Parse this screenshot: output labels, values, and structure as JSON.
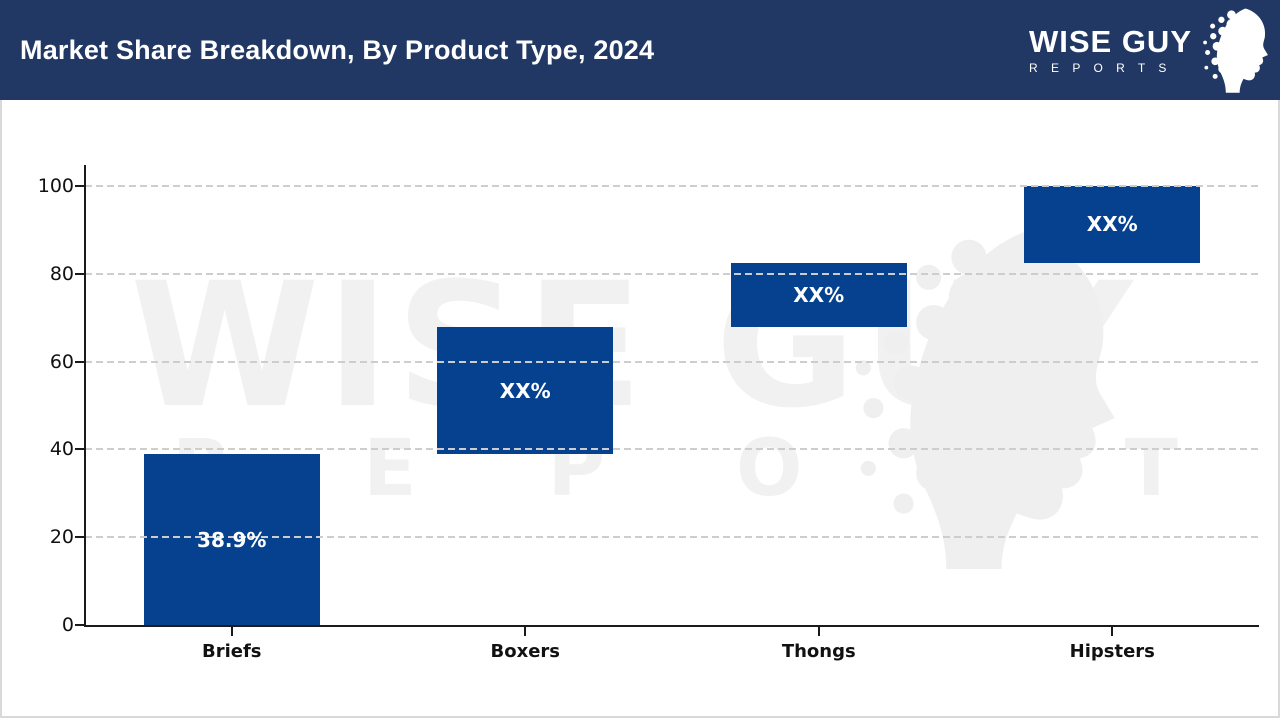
{
  "header": {
    "title": "Market Share Breakdown, By Product Type, 2024",
    "logo": {
      "line1": "WISE GUY",
      "line2": "R E P O R T S"
    }
  },
  "watermark": {
    "line1": "WISE GUY",
    "line2": "R E P O R T S"
  },
  "colors": {
    "header_bg": "#213864",
    "bar": "#05418f",
    "grid": "#cdcdcd",
    "axis": "#1a1a1a",
    "watermark_text": "#f1f1f1",
    "watermark_head": "#efefef",
    "card_border": "#d9d9d9",
    "bar_label": "#ffffff"
  },
  "chart_data": {
    "type": "bar",
    "subtype": "waterfall",
    "title": "Market Share Breakdown, By Product Type, 2024",
    "categories": [
      "Briefs",
      "Boxers",
      "Thongs",
      "Hipsters"
    ],
    "segments": [
      {
        "category": "Briefs",
        "start": 0,
        "end": 38.9,
        "label": "38.9%"
      },
      {
        "category": "Boxers",
        "start": 38.9,
        "end": 67.9,
        "label": "XX%"
      },
      {
        "category": "Thongs",
        "start": 67.9,
        "end": 82.5,
        "label": "XX%"
      },
      {
        "category": "Hipsters",
        "start": 82.5,
        "end": 100,
        "label": "XX%"
      }
    ],
    "xlabel": "",
    "ylabel": "",
    "yticks": [
      0,
      20,
      40,
      60,
      80,
      100
    ],
    "ylim": [
      0,
      105
    ],
    "grid": "horizontal-dashed",
    "grid_above_bars": true,
    "legend": "none"
  }
}
